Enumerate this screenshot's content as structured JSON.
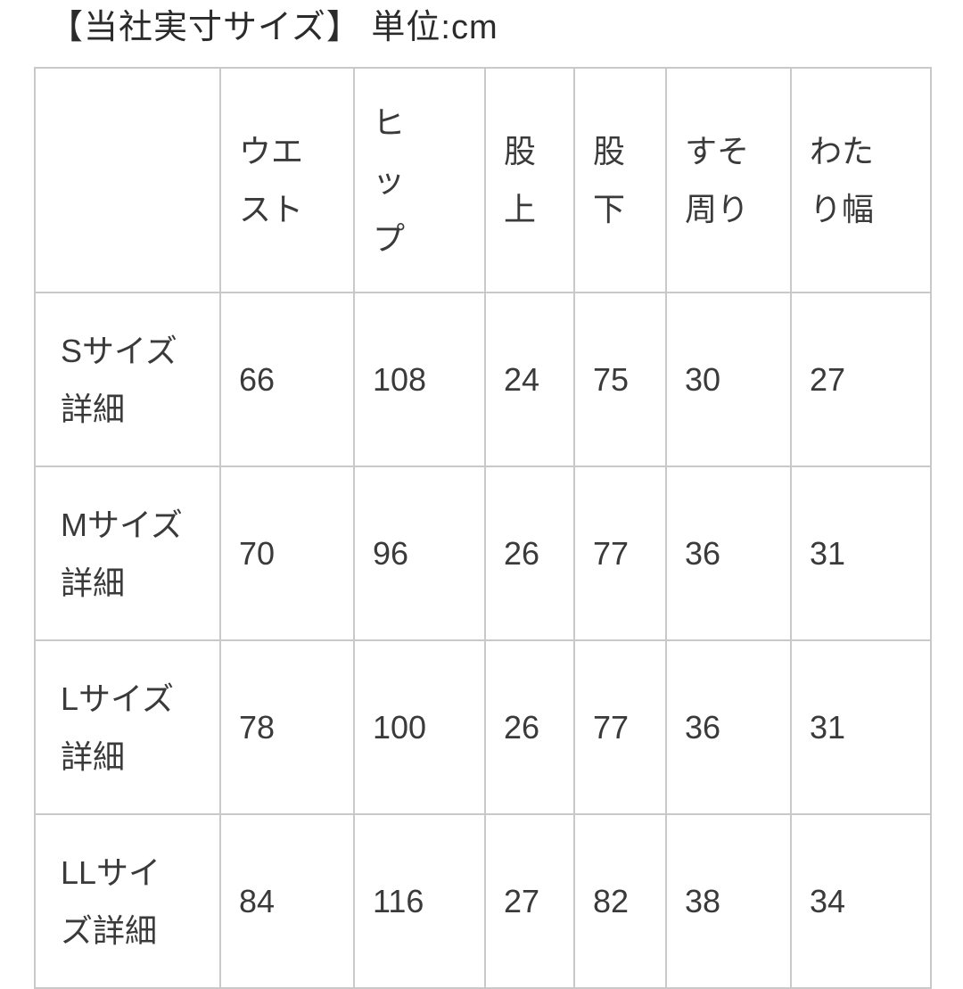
{
  "title": "【当社実寸サイズ】 単位:cm",
  "colors": {
    "background": "#ffffff",
    "border": "#c9c9c9",
    "text": "#3a3a3a",
    "title_text": "#2b2b2b"
  },
  "chart_data": {
    "type": "table",
    "title": "【当社実寸サイズ】 単位:cm",
    "unit": "cm",
    "columns": [
      {
        "label": "",
        "display": ""
      },
      {
        "label": "ウエスト",
        "display": "ウエ\nスト"
      },
      {
        "label": "ヒップ",
        "display": "ヒ\nッ\nプ"
      },
      {
        "label": "股上",
        "display": "股\n上"
      },
      {
        "label": "股下",
        "display": "股\n下"
      },
      {
        "label": "すそ周り",
        "display": "すそ\n周り"
      },
      {
        "label": "わたり幅",
        "display": "わた\nり幅"
      }
    ],
    "rows": [
      {
        "label": "Sサイズ詳細",
        "display": "Sサイズ\n詳細",
        "values": [
          66,
          108,
          24,
          75,
          30,
          27
        ]
      },
      {
        "label": "Mサイズ詳細",
        "display": "Mサイズ\n詳細",
        "values": [
          70,
          96,
          26,
          77,
          36,
          31
        ]
      },
      {
        "label": "Lサイズ詳細",
        "display": "Lサイズ\n詳細",
        "values": [
          78,
          100,
          26,
          77,
          36,
          31
        ]
      },
      {
        "label": "LLサイズ詳細",
        "display": "LLサイ\nズ詳細",
        "values": [
          84,
          116,
          27,
          82,
          38,
          34
        ]
      }
    ]
  }
}
